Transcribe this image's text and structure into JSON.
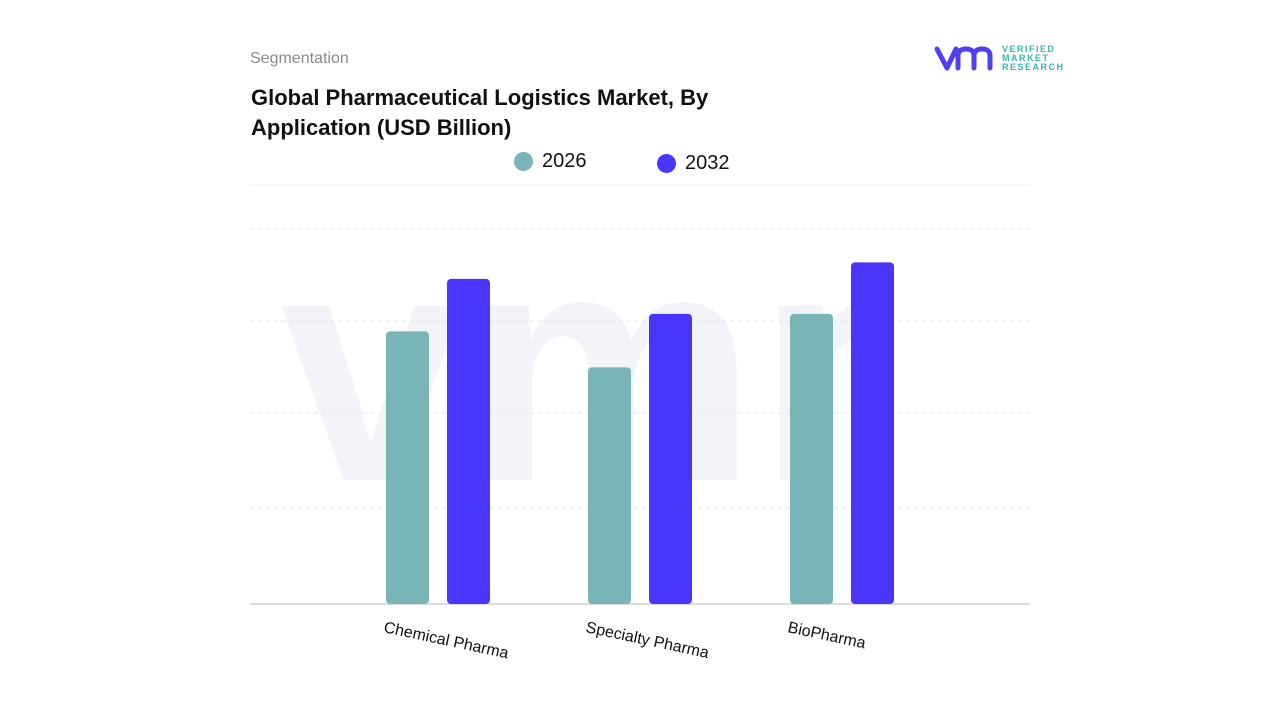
{
  "header": {
    "segment": "Segmentation",
    "title": "Global Pharmaceutical Logistics Market, By Application (USD Billion)"
  },
  "logo": {
    "text": "VERIFIED MARKET RESEARCH",
    "line1": "VERIFIED",
    "line2": "MARKET",
    "line3": "RESEARCH",
    "colors": {
      "mark": "#4f3ff0",
      "text": "#3fb5a6"
    }
  },
  "chart_data": {
    "type": "bar",
    "title": "Global Pharmaceutical Logistics Market, By Application (USD Billion)",
    "categories": [
      "Chemical Pharma",
      "Specialty Pharma",
      "BioPharma"
    ],
    "series": [
      {
        "name": "2026",
        "color": "#79b4b7",
        "values": [
          2.96,
          2.57,
          3.15
        ]
      },
      {
        "name": "2032",
        "color": "#4a35fb",
        "values": [
          3.53,
          3.15,
          3.71
        ]
      }
    ],
    "ylim": [
      0,
      4.55
    ],
    "y_ticks_labeled": false,
    "grid": true,
    "legend": "top-center"
  }
}
